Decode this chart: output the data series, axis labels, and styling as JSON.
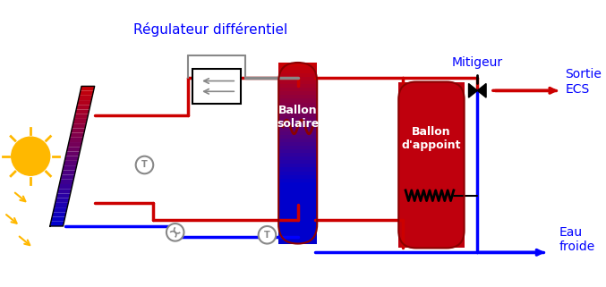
{
  "title": "",
  "bg_color": "#ffffff",
  "blue": "#0000ff",
  "red": "#cc0000",
  "dark_red": "#cc0000",
  "gray": "#888888",
  "black": "#000000",
  "gold": "#FFB800",
  "regulateur_text": "Régulateur différentiel",
  "mitigeur_text": "Mitigeur",
  "sortie_text": "Sortie\nECS",
  "ballon_solaire_text": "Ballon\nsolaire",
  "ballon_appoint_text": "Ballon\nd'appoint",
  "eau_froide_text": "Eau\nfroide"
}
